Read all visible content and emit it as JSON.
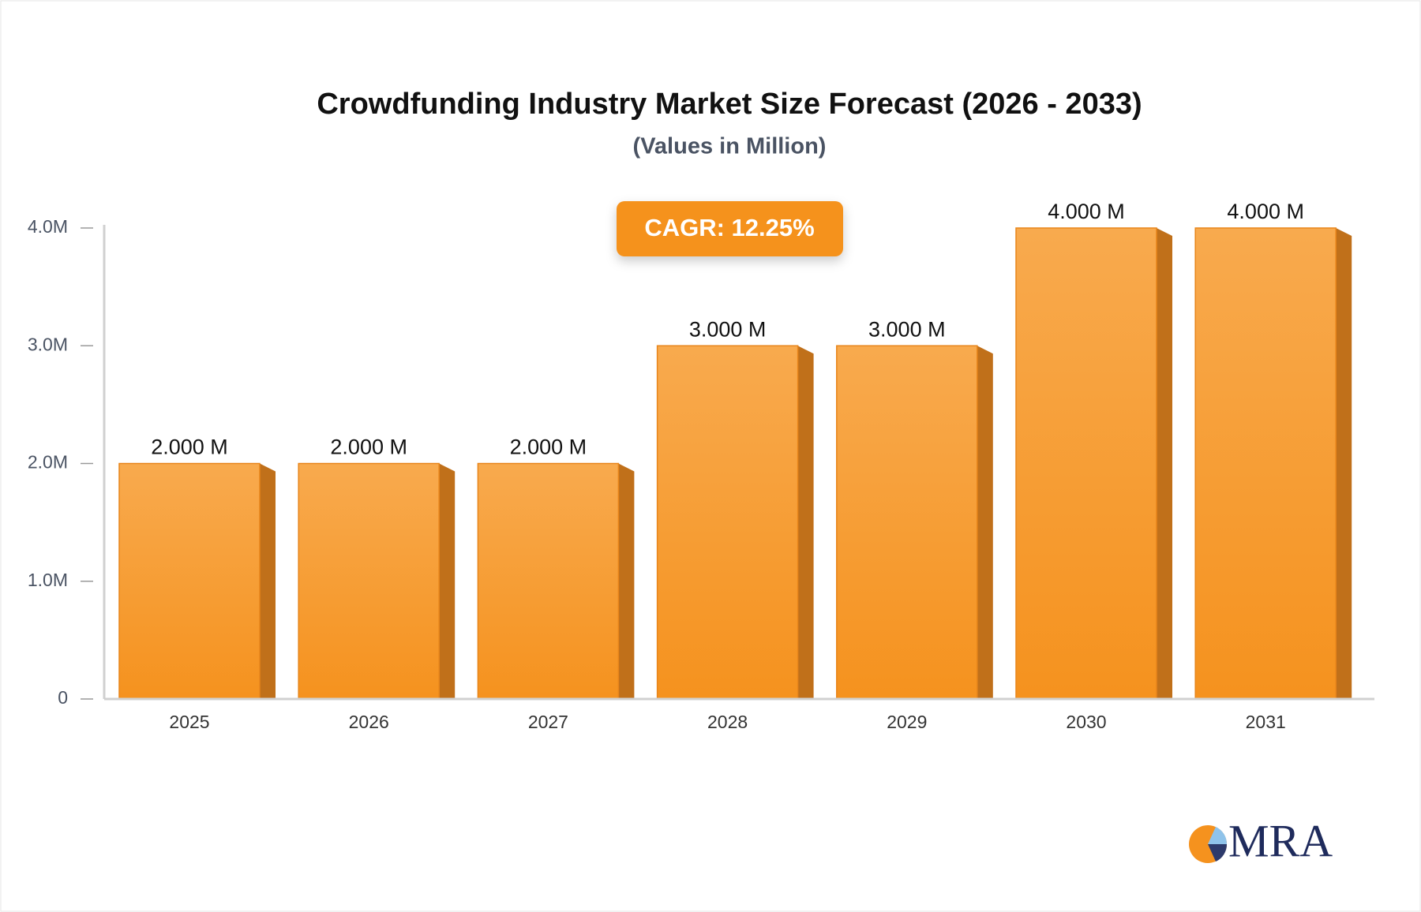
{
  "chart_data": {
    "type": "bar",
    "title": "Crowdfunding Industry Market Size Forecast (2026 - 2033)",
    "subtitle": "(Values in Million)",
    "annotation": "CAGR: 12.25%",
    "logo": "MRA",
    "categories": [
      "2025",
      "2026",
      "2027",
      "2028",
      "2029",
      "2030",
      "2031"
    ],
    "values": [
      2,
      2,
      2,
      3,
      3,
      4,
      4
    ],
    "value_labels": [
      "2.000 M",
      "2.000 M",
      "2.000 M",
      "3.000 M",
      "3.000 M",
      "4.000 M",
      "4.000 M"
    ],
    "color": "#f7a040",
    "ylim": [
      0,
      4
    ],
    "yticks": [
      0,
      {
        "value": 1,
        "label": "1.0M"
      },
      {
        "value": 2,
        "label": "2.0M"
      },
      {
        "value": 3,
        "label": "3.0M"
      },
      {
        "value": 4,
        "label": "4.0M"
      }
    ],
    "grid": false
  }
}
